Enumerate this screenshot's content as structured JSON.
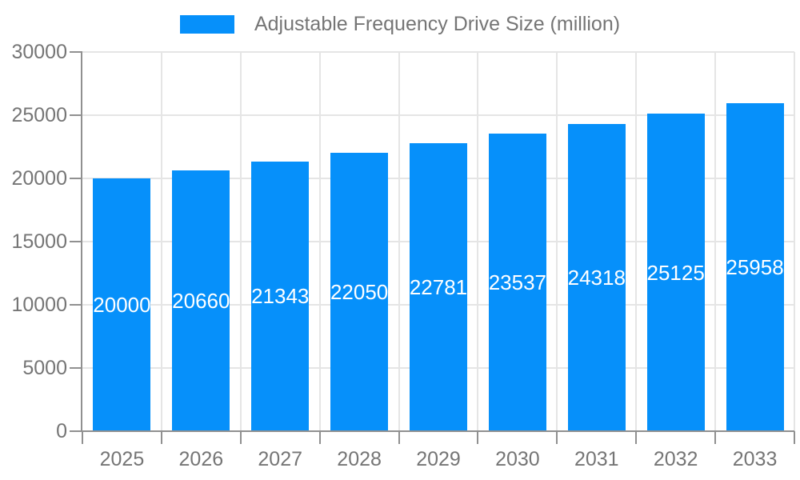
{
  "chart_data": {
    "type": "bar",
    "title": "Adjustable Frequency Drive Size (million)",
    "legend": "Adjustable Frequency Drive Size (million)",
    "legend_position": "top",
    "categories": [
      "2025",
      "2026",
      "2027",
      "2028",
      "2029",
      "2030",
      "2031",
      "2032",
      "2033"
    ],
    "values": [
      20000,
      20660,
      21343,
      22050,
      22781,
      23537,
      24318,
      25125,
      25958
    ],
    "xlabel": "",
    "ylabel": "",
    "ylim": [
      0,
      30000
    ],
    "yticks": [
      0,
      5000,
      10000,
      15000,
      20000,
      25000,
      30000
    ],
    "grid": true
  },
  "colors": {
    "bar": "#0690FA",
    "grid": "#E5E5E5",
    "axis": "#909090",
    "text": "#757575",
    "bar_label": "#FFFFFF",
    "background": "#FFFFFF"
  }
}
